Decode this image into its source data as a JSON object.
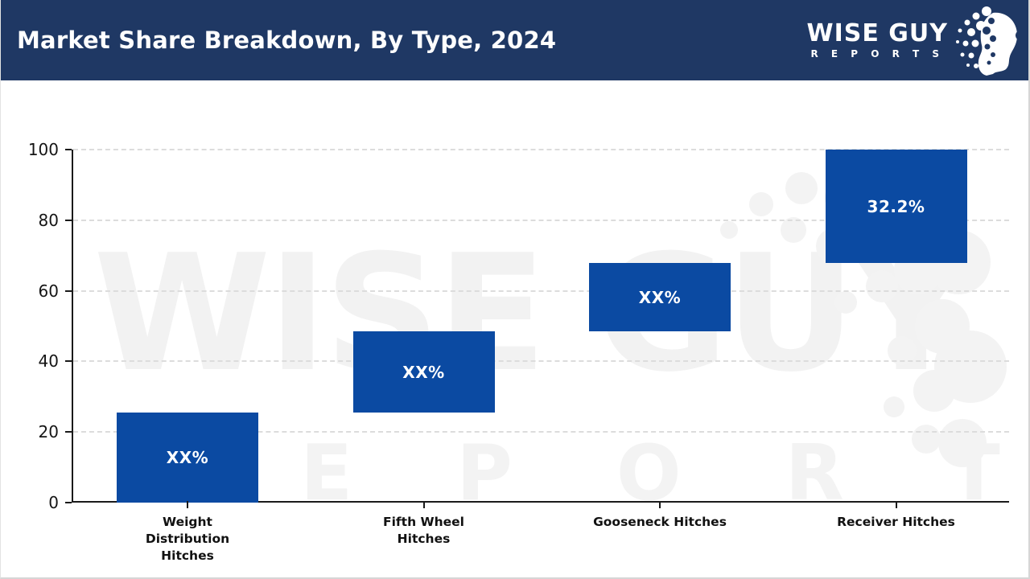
{
  "header": {
    "title": "Market Share Breakdown, By Type, 2024",
    "logo": {
      "line1": "WISE GUY",
      "line2": "R E P O R T S"
    }
  },
  "watermark": {
    "line1": "WISE GUY",
    "line2": "R E P O R T S"
  },
  "chart_data": {
    "type": "bar",
    "subtype": "waterfall",
    "title": "Market Share Breakdown, By Type, 2024",
    "categories": [
      "Weight\nDistribution\nHitches",
      "Fifth Wheel\nHitches",
      "Gooseneck Hitches",
      "Receiver Hitches"
    ],
    "segments": [
      {
        "category": "Weight Distribution Hitches",
        "start": 0,
        "end": 25.5,
        "value_label": "XX%"
      },
      {
        "category": "Fifth Wheel Hitches",
        "start": 25.5,
        "end": 48.5,
        "value_label": "XX%"
      },
      {
        "category": "Gooseneck Hitches",
        "start": 48.5,
        "end": 67.8,
        "value_label": "XX%"
      },
      {
        "category": "Receiver Hitches",
        "start": 67.8,
        "end": 100,
        "value_label": "32.2%",
        "value": 32.2
      }
    ],
    "ylim": [
      0,
      100
    ],
    "yticks": [
      0,
      20,
      40,
      60,
      80,
      100
    ],
    "ytick_labels": [
      "0",
      "20",
      "40",
      "60",
      "80",
      "100"
    ],
    "xlabel": "",
    "ylabel": "",
    "grid": "horizontal-dashed",
    "legend": "none",
    "bar_color": "#0B4AA2",
    "bar_label_color": "#FFFFFF"
  },
  "colors": {
    "header_bg": "#1F3864",
    "bar": "#0B4AA2",
    "gridline": "#DCDCDC",
    "axis": "#1A1A1A",
    "watermark": "#F2F2F2",
    "page_border": "#D6D6D6"
  }
}
